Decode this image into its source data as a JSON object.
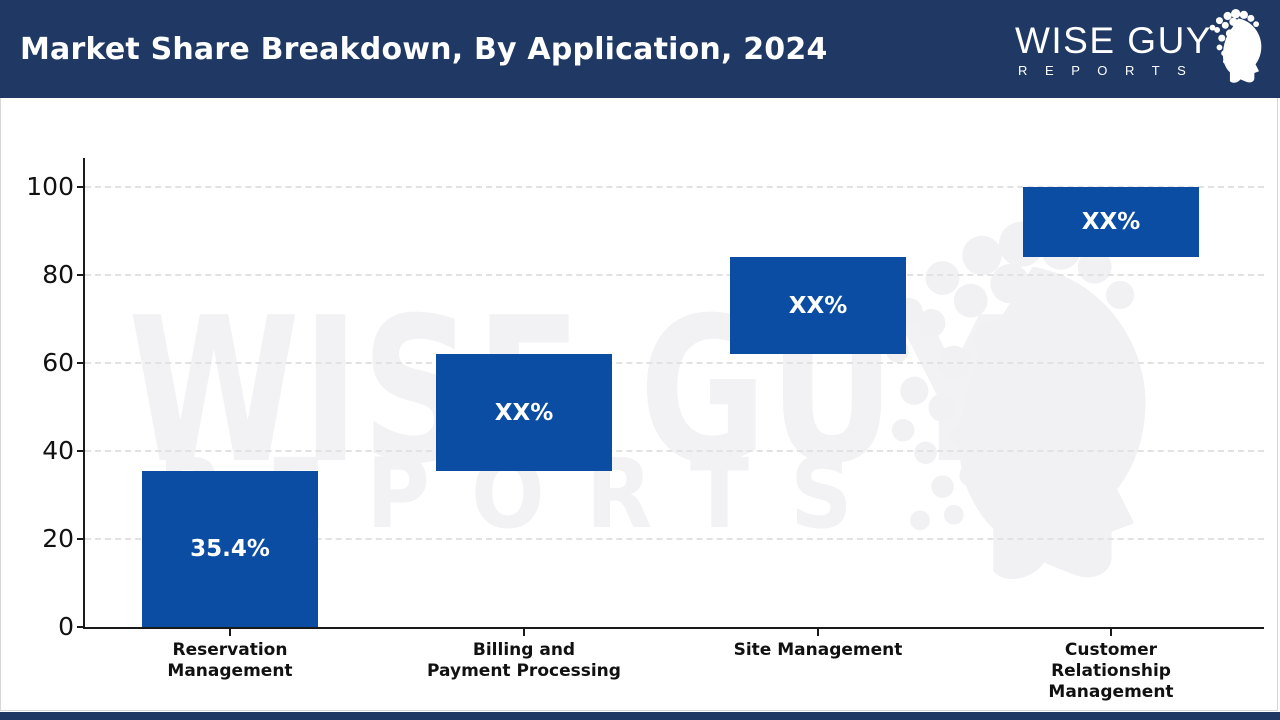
{
  "page": {
    "background": "#FFFFFF",
    "accent_navy": "#1F3864",
    "card_border": "#D8D8D8"
  },
  "header": {
    "title": "Market Share Breakdown, By Application, 2024",
    "logo_line1": "WISE GUY",
    "logo_line2": "R E P O R T S"
  },
  "watermark": {
    "line1": "WISE GUY",
    "line2": "REPORTS"
  },
  "chart_data": {
    "type": "bar",
    "subtype": "waterfall",
    "title": "Market Share Breakdown, By Application, 2024",
    "categories": [
      "Reservation Management",
      "Billing and Payment Processing",
      "Site Management",
      "Customer Relationship Management"
    ],
    "category_lines": [
      [
        "Reservation",
        "Management"
      ],
      [
        "Billing and",
        "Payment Processing"
      ],
      [
        "Site Management"
      ],
      [
        "Customer",
        "Relationship",
        "Management"
      ]
    ],
    "segments": [
      {
        "category": "Reservation Management",
        "start": 0,
        "end": 35.4,
        "label": "35.4%"
      },
      {
        "category": "Billing and Payment Processing",
        "start": 35.4,
        "end": 62,
        "label": "XX%"
      },
      {
        "category": "Site Management",
        "start": 62,
        "end": 84,
        "label": "XX%"
      },
      {
        "category": "Customer Relationship Management",
        "start": 84,
        "end": 100,
        "label": "XX%"
      }
    ],
    "values": [
      35.4,
      26.6,
      22,
      16
    ],
    "ylim": [
      0,
      100
    ],
    "yticks": [
      0,
      20,
      40,
      60,
      80,
      100
    ],
    "xlabel": "",
    "ylabel": "",
    "legend": "none",
    "grid": "horizontal-dashed",
    "bar_color": "#0B4DA2",
    "bar_label_color": "#FFFFFF",
    "axis_color": "#1A1A1A",
    "grid_color": "#E2E2E2",
    "tick_label_color": "#111111"
  }
}
